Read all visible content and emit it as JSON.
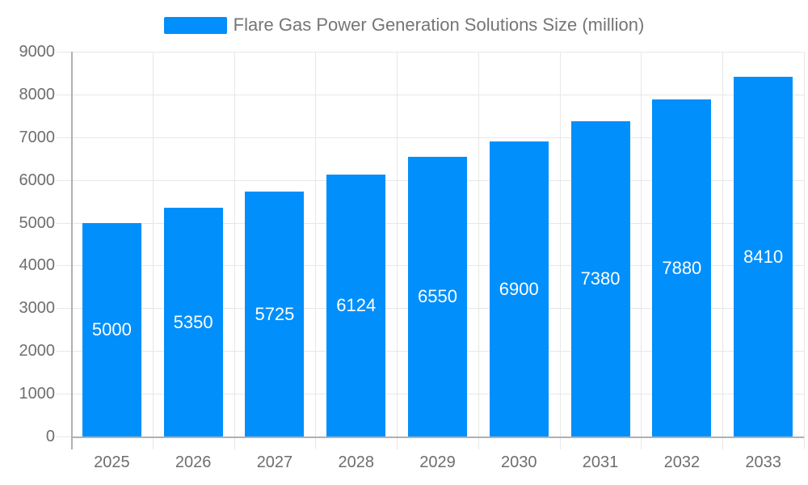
{
  "legend": {
    "label": "Flare Gas Power Generation Solutions Size (million)",
    "swatch_color": "#008FFB"
  },
  "chart_data": {
    "type": "bar",
    "title": "Flare Gas Power Generation Solutions Size (million)",
    "categories": [
      "2025",
      "2026",
      "2027",
      "2028",
      "2029",
      "2030",
      "2031",
      "2032",
      "2033"
    ],
    "series": [
      {
        "name": "Flare Gas Power Generation Solutions Size (million)",
        "values": [
          5000,
          5350,
          5725,
          6124,
          6550,
          6900,
          7380,
          7880,
          8410
        ]
      }
    ],
    "xlabel": "",
    "ylabel": "",
    "ylim": [
      0,
      9000
    ],
    "ytick_step": 1000,
    "ytick_labels": [
      "0",
      "1000",
      "2000",
      "3000",
      "4000",
      "5000",
      "6000",
      "7000",
      "8000",
      "9000"
    ],
    "grid": true,
    "legend_position": "top",
    "data_labels": "inside-center",
    "colors": {
      "bar": "#008FFB",
      "data_label": "#ffffff",
      "axis_label": "#6e6e6e",
      "legend_label": "#757575",
      "grid_line": "#e7e7e7",
      "axis_line": "#b0b0b0"
    }
  }
}
